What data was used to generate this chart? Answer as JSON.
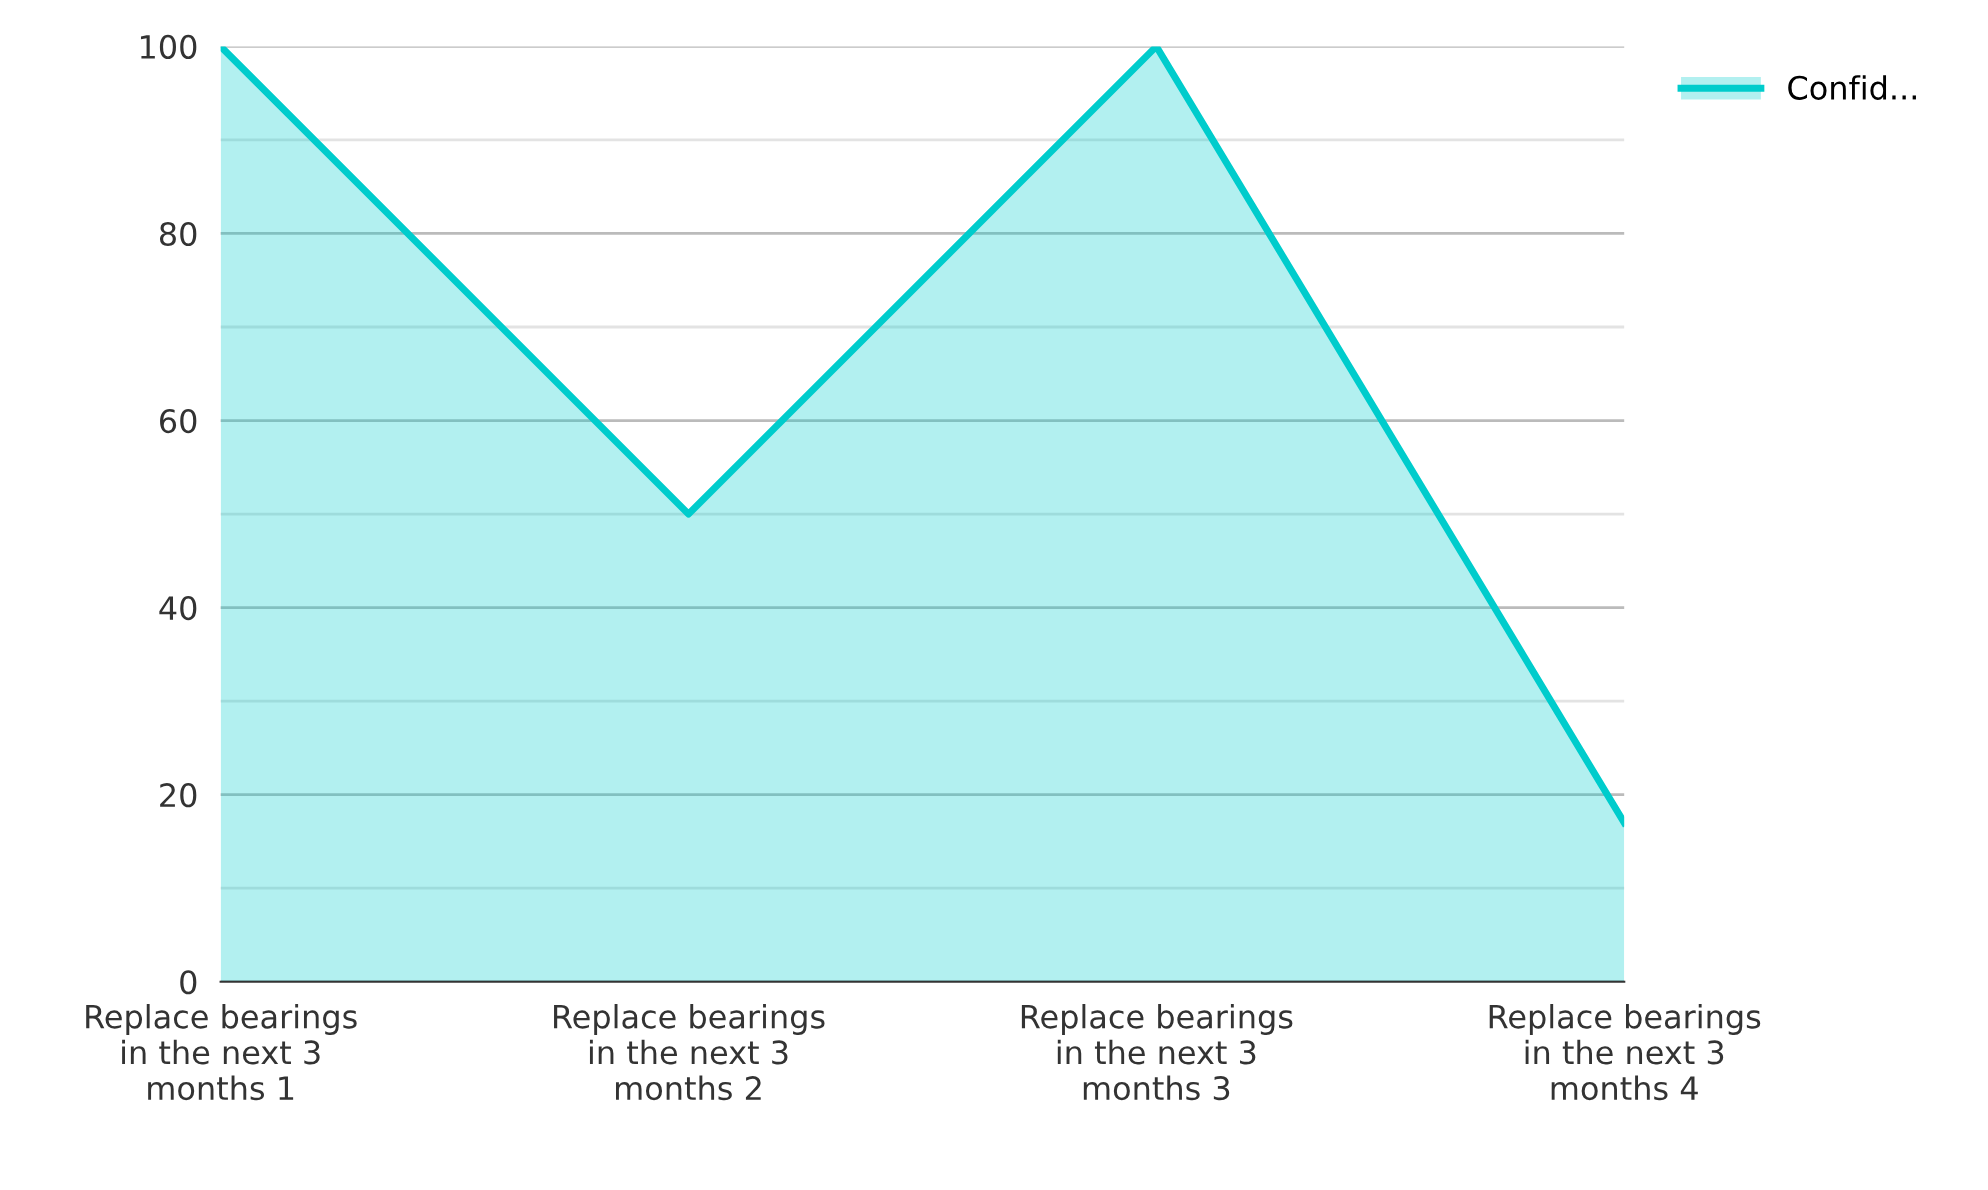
{
  "chart_data": {
    "type": "area",
    "categories": [
      "Replace bearings\nin the next 3\nmonths 1",
      "Replace bearings\nin the next 3\nmonths 2",
      "Replace bearings\nin the next 3\nmonths 3",
      "Replace bearings\nin the next 3\nmonths 4"
    ],
    "series": [
      {
        "name": "Confid...",
        "color": "#00cccc",
        "values": [
          100,
          50,
          100,
          17
        ]
      }
    ],
    "ylim": [
      0,
      100
    ],
    "yticks": [
      0,
      {
        "value": 10,
        "label": null
      },
      20,
      {
        "value": 30,
        "label": null
      },
      40,
      {
        "value": 50,
        "label": null
      },
      60,
      {
        "value": 70,
        "label": null
      },
      80,
      {
        "value": 90,
        "label": null
      },
      100
    ],
    "grid": "y",
    "legend": "top right",
    "marker": "none",
    "line_style": "solid"
  }
}
